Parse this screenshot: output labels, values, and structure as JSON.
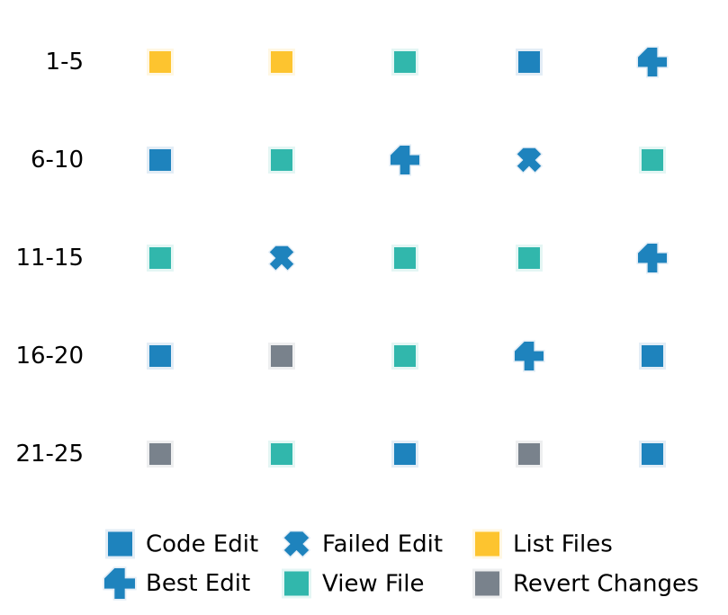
{
  "figure": {
    "background": "#ffffff",
    "text_color": "#000000"
  },
  "chart_data": {
    "type": "scatter",
    "title": "",
    "xlabel": "",
    "ylabel": "",
    "grid_lines": false,
    "legend_position": "bottom",
    "row_labels": [
      "1-5",
      "6-10",
      "11-15",
      "16-20",
      "21-25"
    ],
    "columns_per_row": 5,
    "cells": [
      [
        "list_files",
        "list_files",
        "view_file",
        "code_edit",
        "best_edit"
      ],
      [
        "code_edit",
        "view_file",
        "best_edit",
        "failed_edit",
        "view_file"
      ],
      [
        "view_file",
        "failed_edit",
        "view_file",
        "view_file",
        "best_edit"
      ],
      [
        "code_edit",
        "revert_changes",
        "view_file",
        "best_edit",
        "code_edit"
      ],
      [
        "revert_changes",
        "view_file",
        "code_edit",
        "revert_changes",
        "code_edit"
      ]
    ],
    "marker_types": {
      "code_edit": {
        "label": "Code Edit",
        "shape": "square",
        "color": "#1e83bd",
        "halo": "#e3edf6"
      },
      "failed_edit": {
        "label": "Failed Edit",
        "shape": "x",
        "color": "#1e83bd",
        "halo": "#e3edf6"
      },
      "list_files": {
        "label": "List Files",
        "shape": "square",
        "color": "#fdc42f",
        "halo": "#fff7e3"
      },
      "best_edit": {
        "label": "Best Edit",
        "shape": "plus",
        "color": "#1e83bd",
        "halo": "#e3edf6"
      },
      "view_file": {
        "label": "View File",
        "shape": "square",
        "color": "#31b7ac",
        "halo": "#e4f6f4"
      },
      "revert_changes": {
        "label": "Revert Changes",
        "shape": "square",
        "color": "#79828c",
        "halo": "#eeeff0"
      }
    },
    "legend_rows": [
      [
        "code_edit",
        "failed_edit",
        "list_files"
      ],
      [
        "best_edit",
        "view_file",
        "revert_changes"
      ]
    ]
  }
}
